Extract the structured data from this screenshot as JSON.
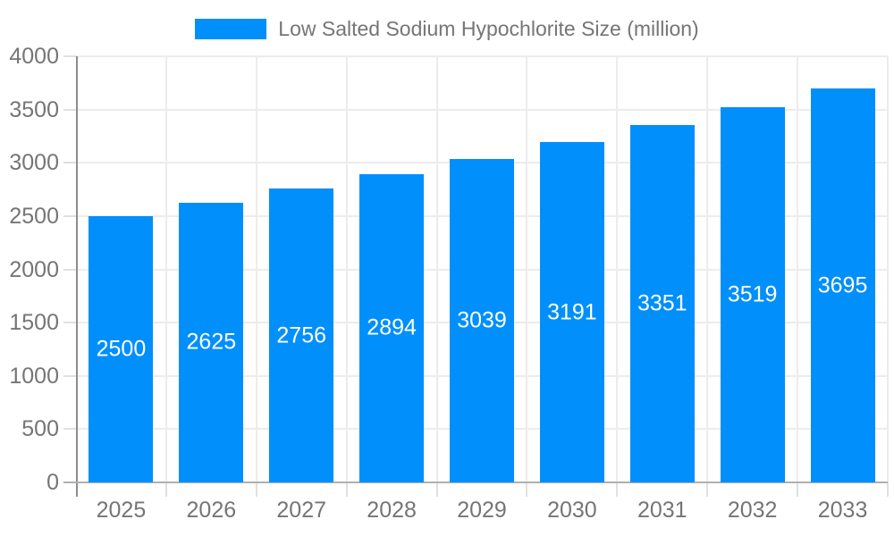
{
  "legend": {
    "label": "Low Salted Sodium Hypochlorite Size (million)",
    "swatch_color": "#008FFB"
  },
  "chart_data": {
    "type": "bar",
    "title": "Low Salted Sodium Hypochlorite Size (million)",
    "categories": [
      "2025",
      "2026",
      "2027",
      "2028",
      "2029",
      "2030",
      "2031",
      "2032",
      "2033"
    ],
    "series": [
      {
        "name": "Low Salted Sodium Hypochlorite Size (million)",
        "values": [
          2500,
          2625,
          2756,
          2894,
          3039,
          3191,
          3351,
          3519,
          3695
        ]
      }
    ],
    "values": [
      2500,
      2625,
      2756,
      2894,
      3039,
      3191,
      3351,
      3519,
      3695
    ],
    "bar_labels": [
      "2500",
      "2625",
      "2756",
      "2894",
      "3039",
      "3191",
      "3351",
      "3519",
      "3695"
    ],
    "xlabel": "",
    "ylabel": "",
    "ylim": [
      0,
      4000
    ],
    "yticks": [
      0,
      500,
      1000,
      1500,
      2000,
      2500,
      3000,
      3500,
      4000
    ],
    "ytick_labels": [
      "0",
      "500",
      "1000",
      "1500",
      "2000",
      "2500",
      "3000",
      "3500",
      "4000"
    ],
    "grid": true,
    "legend_position": "top",
    "colors": {
      "bar": "#008FFB",
      "bar_value_text": "#ffffff",
      "axis_text": "#757575",
      "gridline": "#ececec",
      "tick": "#e0e0e0",
      "y_axis_line": "#8c8c8c",
      "x_axis_line": "#b0b0b0",
      "background": "#ffffff"
    }
  }
}
